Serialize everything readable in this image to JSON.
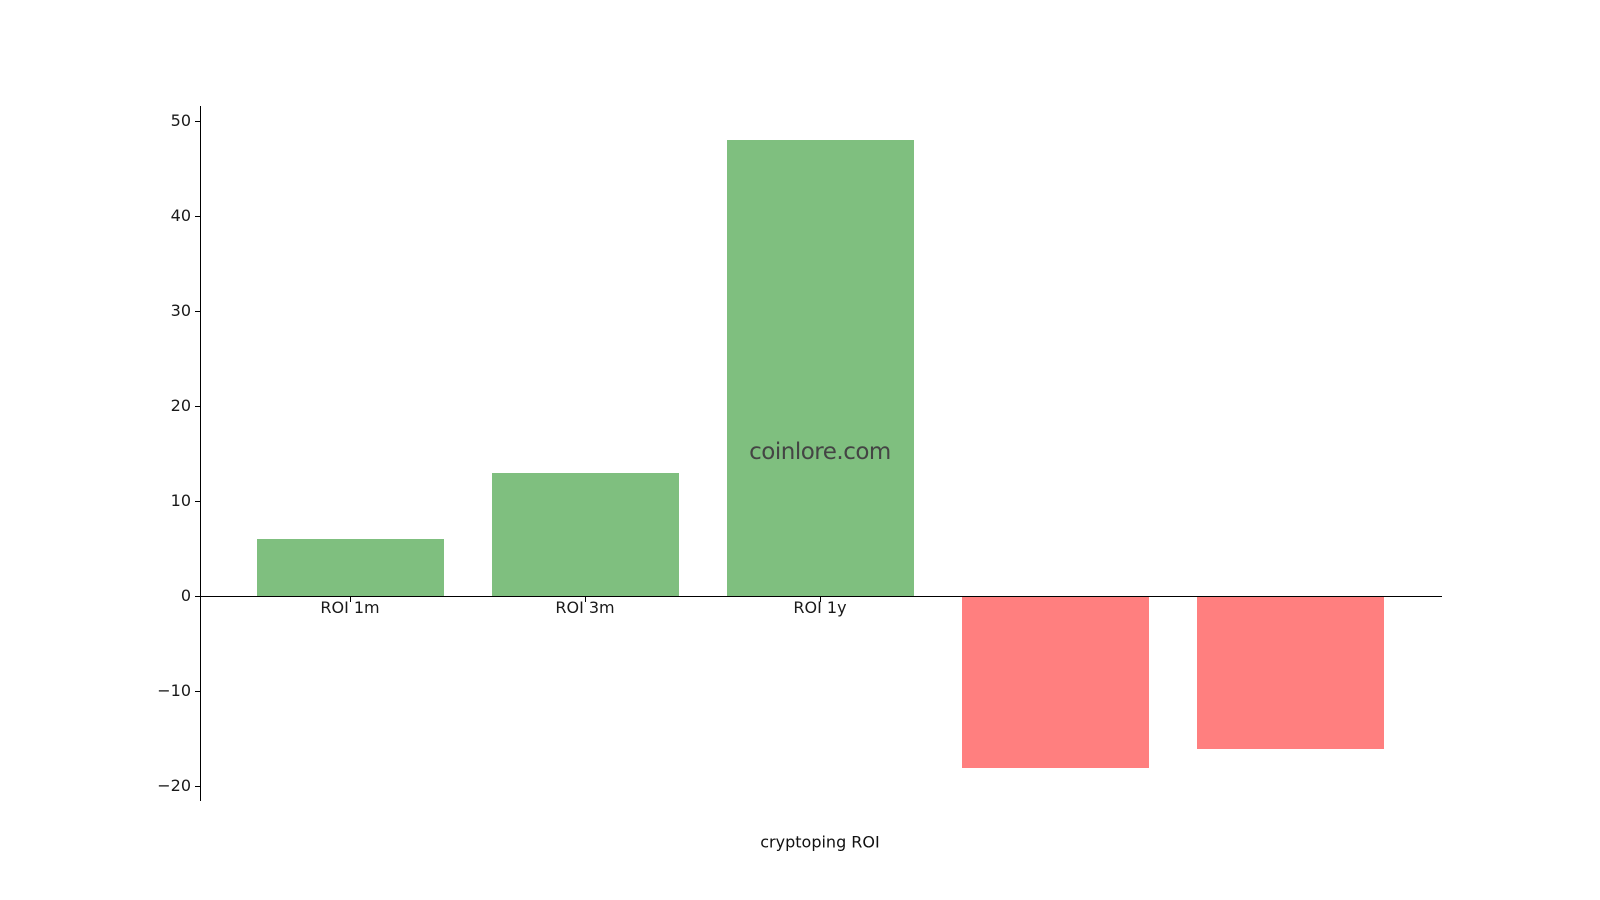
{
  "page": {
    "background": "#ffffff"
  },
  "watermark": {
    "text": "coinlore.com",
    "color": "#444444"
  },
  "chart_data": {
    "type": "bar",
    "title": "cryptoping ROI",
    "categories": [
      "ROI 1m",
      "ROI 3m",
      "ROI 1y",
      "",
      ""
    ],
    "values": [
      6,
      13,
      48,
      -18,
      -16
    ],
    "xlabel": "",
    "ylabel": "",
    "yticks": [
      50,
      40,
      30,
      20,
      10,
      0,
      -10,
      -20
    ],
    "ylim": [
      -21.6,
      51.5
    ],
    "grid": false,
    "legend": "none",
    "colors": {
      "positive_bar": "#7fbf7f",
      "negative_bar": "#ff7f7f",
      "axis": "#000000",
      "tick_text": "#1a1a1a"
    },
    "notes": "x tick labels of the two negative bars are hidden behind the red bars"
  }
}
